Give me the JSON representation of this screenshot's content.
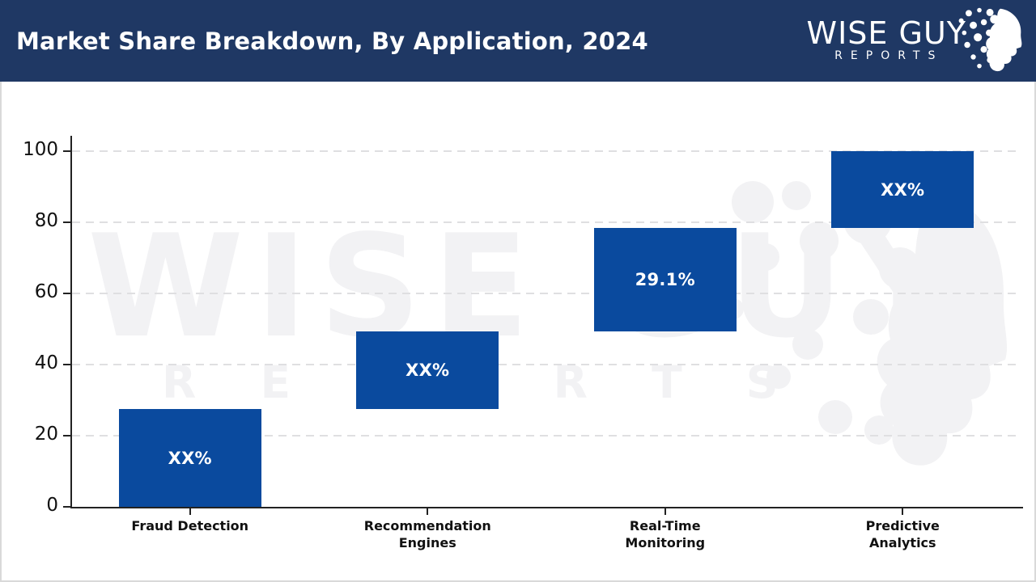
{
  "header": {
    "title": "Market Share Breakdown, By Application, 2024",
    "logo_line1": "WISE GUY",
    "logo_line2": "REPORTS"
  },
  "watermark": {
    "line1": "WISE GUY",
    "line2": "R E P O R T S"
  },
  "colors": {
    "header_bg": "#1F3864",
    "bar": "#0A4A9E",
    "axis": "#222222",
    "grid": "#DFDFE1",
    "bar_label_text": "#FFFFFF",
    "watermark": "#F2F2F4"
  },
  "chart_data": {
    "type": "bar",
    "subtype": "waterfall (floating stacked segments, one per category)",
    "title": "Market Share Breakdown, By Application, 2024",
    "categories": [
      "Fraud Detection",
      "Recommendation\nEngines",
      "Real-Time\nMonitoring",
      "Predictive\nAnalytics"
    ],
    "segments": [
      {
        "category": "Fraud Detection",
        "start": 0,
        "end": 27.4,
        "value_label": "XX%"
      },
      {
        "category": "Recommendation Engines",
        "start": 27.4,
        "end": 49.3,
        "value_label": "XX%"
      },
      {
        "category": "Real-Time Monitoring",
        "start": 49.3,
        "end": 78.4,
        "value": 29.1,
        "value_label": "29.1%"
      },
      {
        "category": "Predictive Analytics",
        "start": 78.4,
        "end": 100,
        "value_label": "XX%"
      }
    ],
    "xlabel": "",
    "ylabel": "",
    "yticks": [
      0,
      20,
      40,
      60,
      80,
      100
    ],
    "ylim": [
      0,
      104
    ],
    "grid": "horizontal dashed",
    "legend": "none",
    "bar_color": "#0A4A9E"
  }
}
